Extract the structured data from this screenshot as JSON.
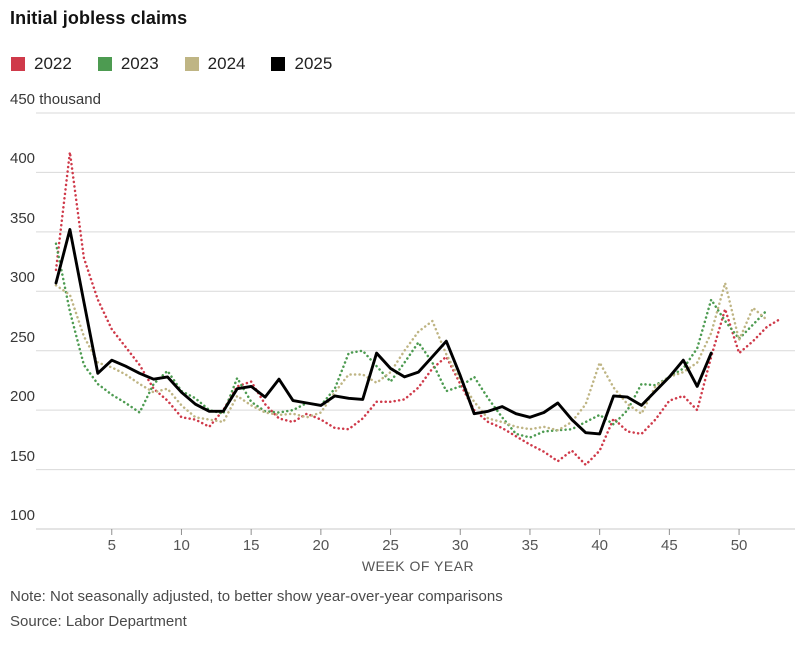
{
  "title": "Initial jobless claims",
  "legend": [
    {
      "label": "2022",
      "color": "#cf3a4a"
    },
    {
      "label": "2023",
      "color": "#4d9b51"
    },
    {
      "label": "2024",
      "color": "#bfb584"
    },
    {
      "label": "2025",
      "color": "#000000"
    }
  ],
  "y_axis": {
    "unit": "thousand",
    "tick_values": [
      450,
      400,
      350,
      300,
      250,
      200,
      150,
      100
    ],
    "tick_labels": [
      "450 thousand",
      "400",
      "350",
      "300",
      "250",
      "200",
      "150",
      "100"
    ]
  },
  "x_axis": {
    "label": "WEEK OF YEAR",
    "tick_values": [
      5,
      10,
      15,
      20,
      25,
      30,
      35,
      40,
      45,
      50
    ]
  },
  "note": "Note: Not seasonally adjusted, to better show year-over-year comparisons",
  "source": "Source: Labor Department",
  "chart_data": {
    "type": "line",
    "title": "Initial jobless claims",
    "xlabel": "WEEK OF YEAR",
    "ylabel": "thousand",
    "xlim": [
      1,
      53
    ],
    "ylim": [
      100,
      450
    ],
    "grid": true,
    "legend_position": "top",
    "x_unit": "week of year (1-53)",
    "series": [
      {
        "name": "2022",
        "color": "#cf3a4a",
        "style": "dotted",
        "values": [
          318,
          417,
          328,
          293,
          268,
          253,
          238,
          218,
          208,
          194,
          192,
          186,
          200,
          220,
          224,
          205,
          193,
          190,
          197,
          192,
          185,
          184,
          193,
          207,
          207,
          209,
          219,
          235,
          245,
          222,
          200,
          190,
          185,
          178,
          171,
          165,
          157,
          166,
          154,
          166,
          193,
          182,
          180,
          192,
          208,
          212,
          200,
          245,
          285,
          248,
          258,
          270,
          277
        ]
      },
      {
        "name": "2023",
        "color": "#4d9b51",
        "style": "dotted",
        "values": [
          340,
          283,
          238,
          222,
          213,
          206,
          198,
          222,
          233,
          216,
          210,
          200,
          197,
          227,
          207,
          199,
          198,
          200,
          206,
          204,
          218,
          248,
          250,
          237,
          224,
          240,
          257,
          240,
          216,
          220,
          228,
          210,
          194,
          180,
          177,
          182,
          183,
          184,
          190,
          196,
          188,
          200,
          222,
          221,
          228,
          235,
          252,
          293,
          275,
          260,
          272,
          284
        ]
      },
      {
        "name": "2024",
        "color": "#bfb584",
        "style": "dotted",
        "values": [
          305,
          297,
          262,
          240,
          236,
          230,
          222,
          215,
          218,
          204,
          194,
          192,
          190,
          212,
          204,
          198,
          196,
          197,
          194,
          198,
          215,
          230,
          230,
          223,
          232,
          250,
          266,
          275,
          247,
          225,
          207,
          193,
          190,
          186,
          184,
          186,
          183,
          190,
          205,
          240,
          219,
          205,
          197,
          220,
          228,
          232,
          240,
          265,
          307,
          259,
          286,
          276
        ]
      },
      {
        "name": "2025",
        "color": "#000000",
        "style": "solid",
        "values": [
          307,
          352,
          291,
          231,
          242,
          237,
          231,
          226,
          228,
          215,
          205,
          199,
          199,
          218,
          220,
          211,
          226,
          208,
          206,
          204,
          212,
          210,
          209,
          248,
          235,
          228,
          232,
          245,
          258,
          229,
          197,
          199,
          203,
          197,
          194,
          198,
          206,
          192,
          181,
          180,
          212,
          211,
          204,
          216,
          228,
          242,
          220,
          248
        ]
      }
    ]
  }
}
